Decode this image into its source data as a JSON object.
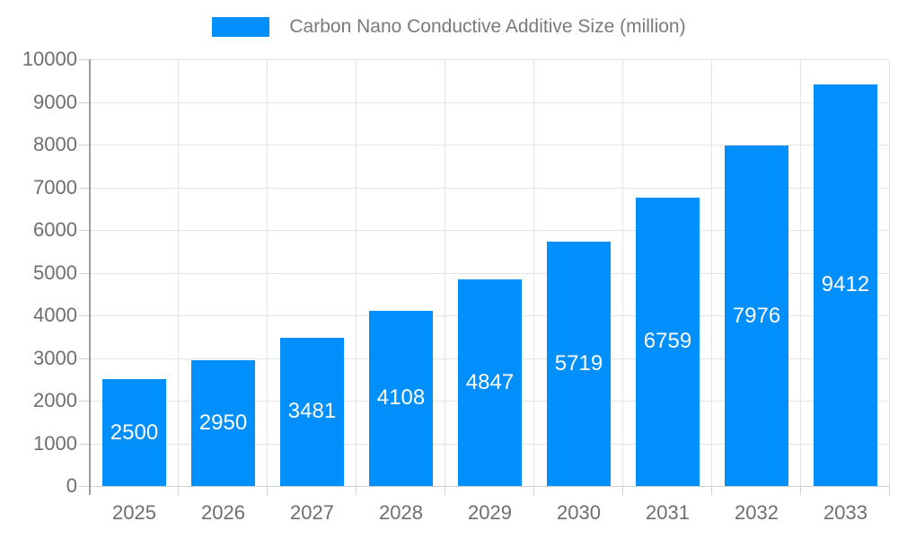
{
  "legend": {
    "label": "Carbon Nano Conductive Additive Size (million)"
  },
  "chart_data": {
    "type": "bar",
    "title": "Carbon Nano Conductive Additive Size (million)",
    "categories": [
      "2025",
      "2026",
      "2027",
      "2028",
      "2029",
      "2030",
      "2031",
      "2032",
      "2033"
    ],
    "values": [
      2500,
      2950,
      3481,
      4108,
      4847,
      5719,
      6759,
      7976,
      9412
    ],
    "xlabel": "",
    "ylabel": "",
    "ylim": [
      0,
      10000
    ],
    "ytick_step": 1000,
    "ytick_labels": [
      "0",
      "1000",
      "2000",
      "3000",
      "4000",
      "5000",
      "6000",
      "7000",
      "8000",
      "9000",
      "10000"
    ],
    "grid": true,
    "legend_position": "top",
    "value_labels": "inside-center"
  },
  "colors": {
    "accent": "#008FFB",
    "value_label": "#FFFFFF",
    "grid": "#E4E4E4",
    "baseline": "#D0D0D0",
    "tick": "#CFCFCF",
    "axis_line": "#9B9B9B",
    "axis_text": "#6E6E6E",
    "legend_text": "#7A7A7A",
    "background": "#FFFFFF"
  }
}
